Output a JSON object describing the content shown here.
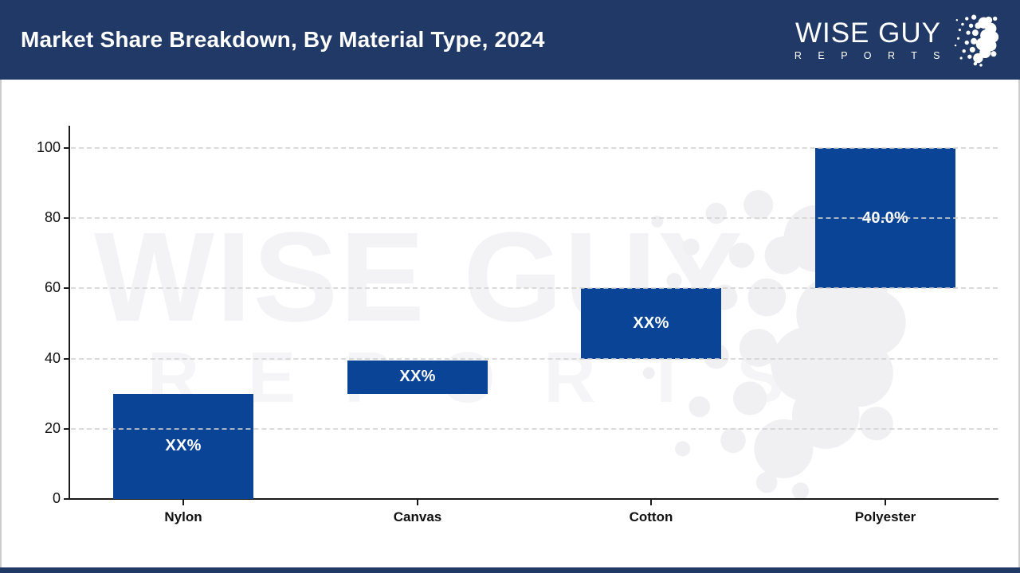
{
  "header": {
    "title": "Market Share Breakdown, By Material Type, 2024",
    "logo": {
      "line1": "WISE GUY",
      "line2": "R E P O R T S"
    }
  },
  "watermark": {
    "line1": "WISE GUY",
    "line2": "R E P O R T S"
  },
  "chart_data": {
    "type": "bar",
    "subtype": "waterfall",
    "title": "Market Share Breakdown, By Material Type, 2024",
    "xlabel": "",
    "ylabel": "",
    "categories": [
      "Nylon",
      "Canvas",
      "Cotton",
      "Polyester"
    ],
    "bars": [
      {
        "category": "Nylon",
        "start": 0,
        "end": 30,
        "label": "XX%"
      },
      {
        "category": "Canvas",
        "start": 30,
        "end": 39.5,
        "label": "XX%"
      },
      {
        "category": "Cotton",
        "start": 40,
        "end": 60,
        "label": "XX%"
      },
      {
        "category": "Polyester",
        "start": 60,
        "end": 100,
        "label": "40.0%"
      }
    ],
    "ylim": [
      0,
      100
    ],
    "yticks": [
      0,
      20,
      40,
      60,
      80,
      100
    ],
    "grid": "horizontal-dashed",
    "legend": "none",
    "bar_color": "#0a4496",
    "bar_label_color": "#ffffff"
  },
  "colors": {
    "header_bg": "#213966",
    "bar": "#0a4496",
    "axis": "#1a1a1a",
    "grid": "#d9d9d9",
    "watermark": "#f2f2f4",
    "card_border": "#cccccc"
  }
}
